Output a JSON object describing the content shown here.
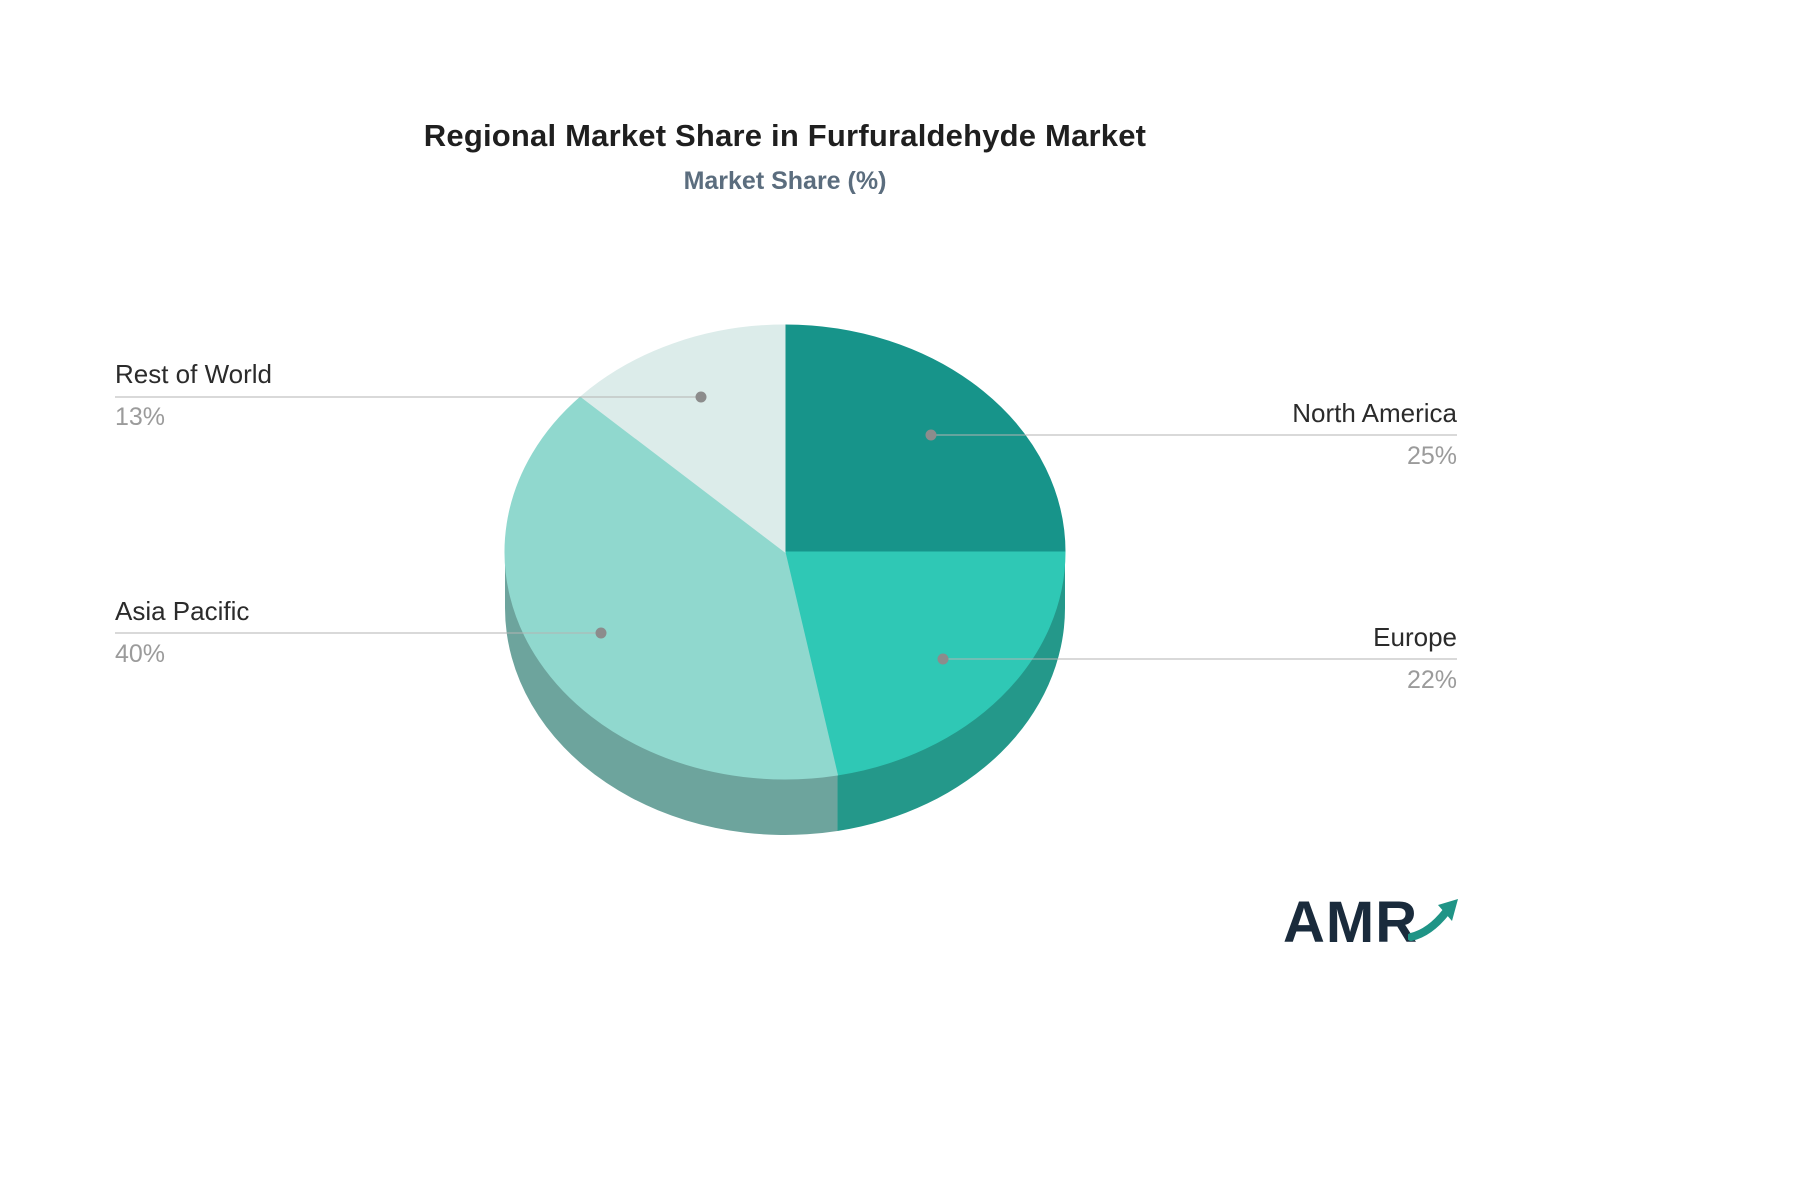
{
  "header": {
    "title": "Regional Market Share in Furfuraldehyde Market",
    "subtitle": "Market Share (%)"
  },
  "chart_data": {
    "type": "pie",
    "title": "Regional Market Share in Furfuraldehyde Market",
    "subtitle": "Market Share (%)",
    "unit": "%",
    "start_angle_deg": -90,
    "direction": "clockwise",
    "depth_3d": true,
    "legend_position": "callout-labels",
    "slices": [
      {
        "label": "North America",
        "value": 25,
        "display": "25%",
        "color": "#17948a"
      },
      {
        "label": "Europe",
        "value": 22,
        "display": "22%",
        "color": "#2fc8b5"
      },
      {
        "label": "Asia Pacific",
        "value": 40,
        "display": "40%",
        "color": "#90d8ce"
      },
      {
        "label": "Rest of World",
        "value": 13,
        "display": "13%",
        "color": "#dcecea"
      }
    ]
  },
  "logo": {
    "text": "AMR",
    "arrow_icon": "trend-arrow",
    "text_color": "#1a2b3c",
    "accent_color": "#1f9486"
  }
}
